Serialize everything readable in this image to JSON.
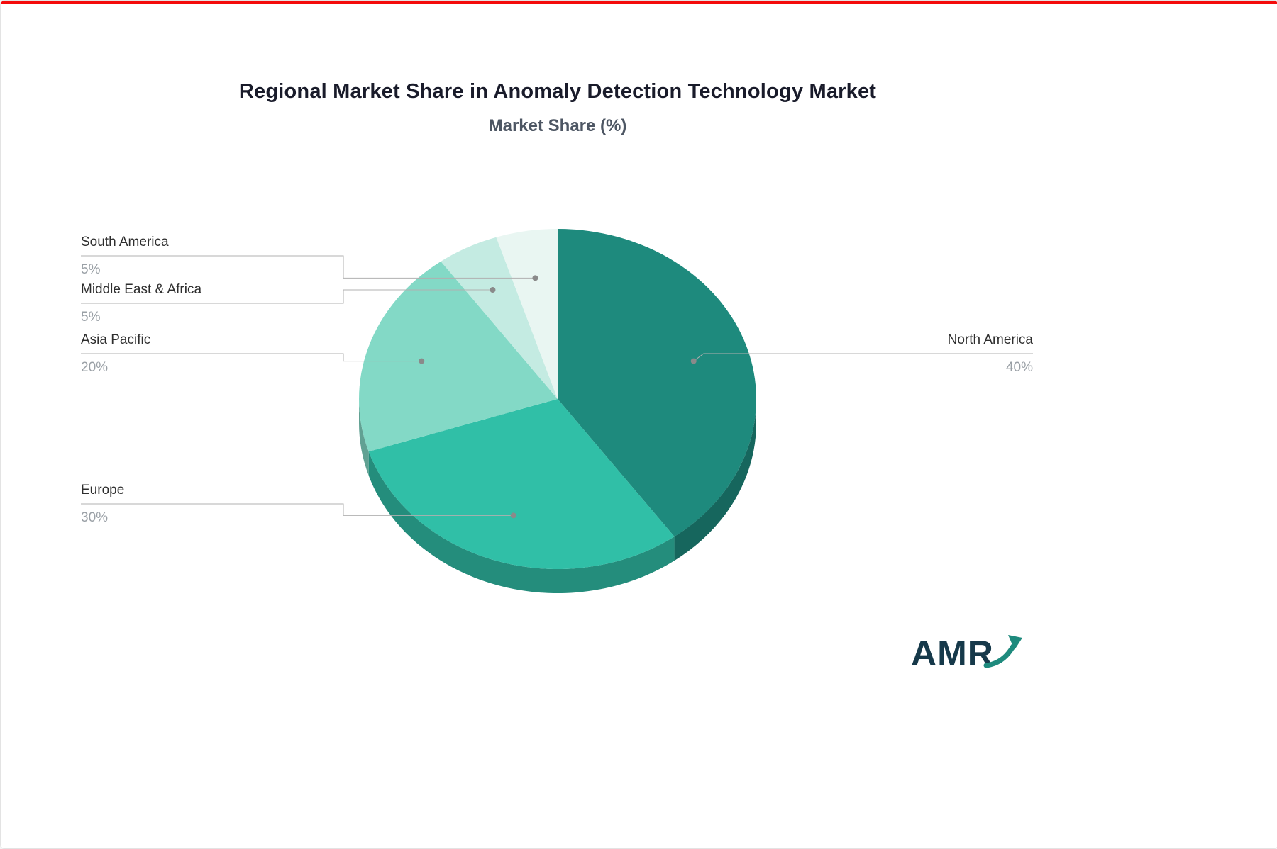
{
  "page": {
    "top_accent_color": "#f40b0b"
  },
  "chart_data": {
    "type": "pie",
    "title": "Regional Market Share in Anomaly Detection Technology Market",
    "subtitle": "Market Share (%)",
    "value_suffix": "%",
    "effect": "3d",
    "start_angle_deg": 0,
    "direction": "clockwise",
    "legend_position": "none",
    "slices": [
      {
        "label": "North America",
        "value": 40,
        "color": "#1e8a7d"
      },
      {
        "label": "Europe",
        "value": 30,
        "color": "#30bfa7"
      },
      {
        "label": "Asia Pacific",
        "value": 20,
        "color": "#83d9c6"
      },
      {
        "label": "Middle East & Africa",
        "value": 5,
        "color": "#c4ebe2"
      },
      {
        "label": "South America",
        "value": 5,
        "color": "#e9f6f2"
      }
    ]
  },
  "logo": {
    "text": "AMR"
  }
}
